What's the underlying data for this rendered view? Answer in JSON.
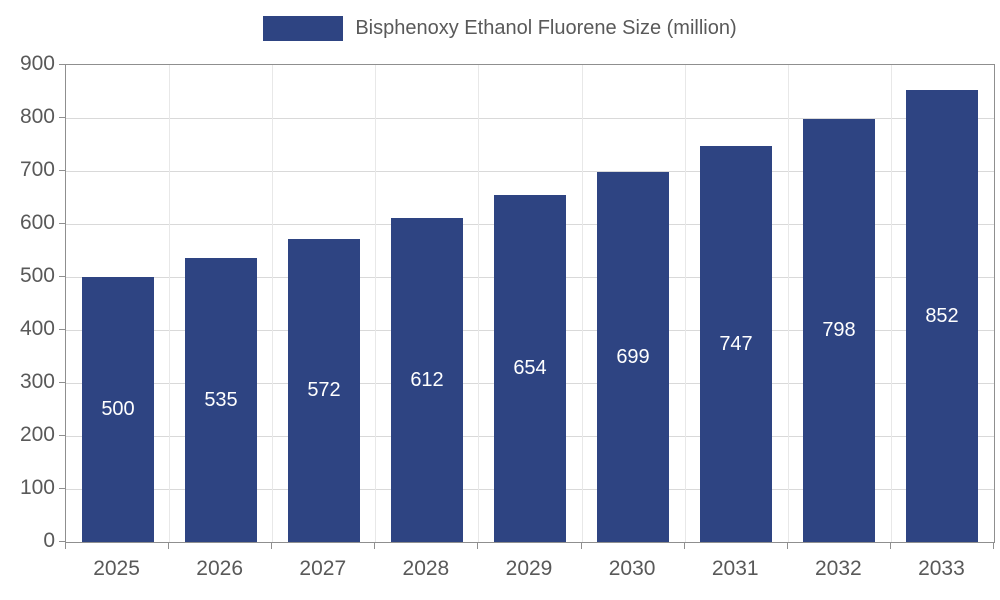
{
  "chart_data": {
    "type": "bar",
    "title": "Bisphenoxy Ethanol Fluorene Size (million)",
    "categories": [
      "2025",
      "2026",
      "2027",
      "2028",
      "2029",
      "2030",
      "2031",
      "2032",
      "2033"
    ],
    "values": [
      500,
      535,
      572,
      612,
      654,
      699,
      747,
      798,
      852
    ],
    "xlabel": "",
    "ylabel": "",
    "ylim": [
      0,
      900
    ],
    "ytick_step": 100,
    "grid": true,
    "legend_position": "top",
    "colors": {
      "bar": "#2e4482",
      "value_label": "#ffffff",
      "axis_text": "#595959",
      "gridline": "#d9d9d9",
      "axis_line": "#8f8f8f"
    }
  }
}
